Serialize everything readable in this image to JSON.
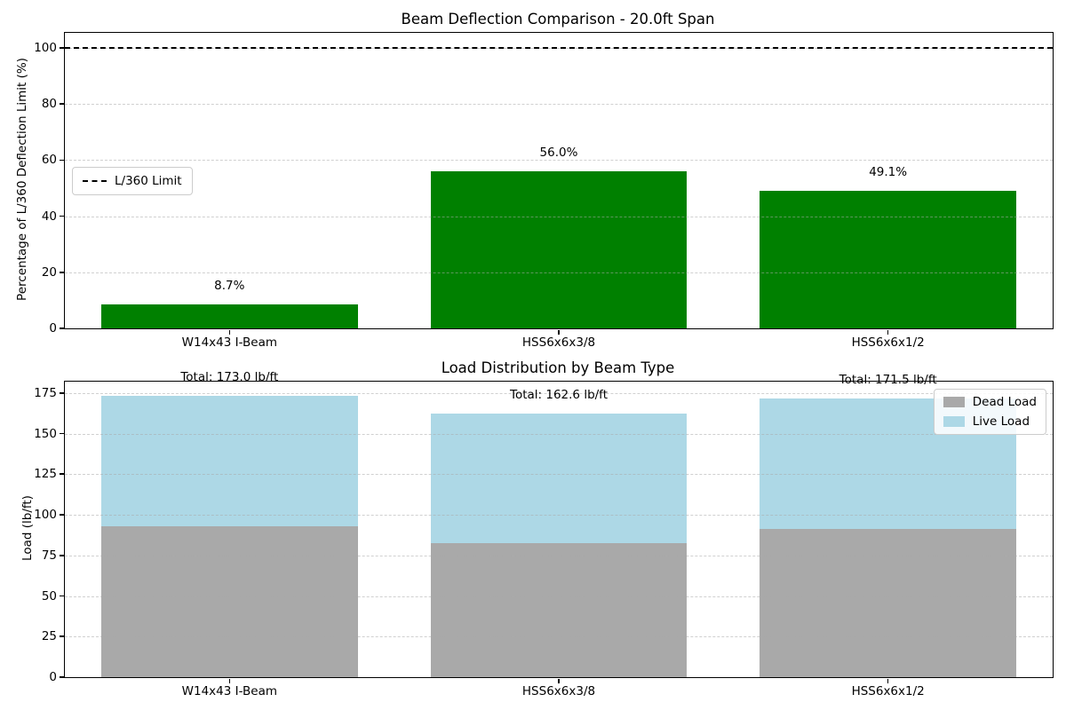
{
  "figure": {
    "background": "#ffffff"
  },
  "colors": {
    "deflection_bar": "#008000",
    "dead_load": "#a9a9a9",
    "live_load": "#add8e6",
    "grid": "#aaaaaa",
    "limit_line": "#000000"
  },
  "chart_data": [
    {
      "type": "bar",
      "title": "Beam Deflection Comparison - 20.0ft Span",
      "ylabel": "Percentage of L/360 Deflection Limit (%)",
      "xlabel": "",
      "categories": [
        "W14x43 I-Beam",
        "HSS6x6x3/8",
        "HSS6x6x1/2"
      ],
      "values": [
        8.7,
        56.0,
        49.1
      ],
      "bar_labels": [
        "8.7%",
        "56.0%",
        "49.1%"
      ],
      "bar_color": "#008000",
      "ylim": [
        0,
        105.4
      ],
      "yticks": [
        0,
        20,
        40,
        60,
        80,
        100
      ],
      "grid": true,
      "reference_line": {
        "value": 100,
        "label": "L/360 Limit",
        "style": "dashed",
        "color": "#000000"
      },
      "legend_position": "center-left"
    },
    {
      "type": "stacked_bar",
      "title": "Load Distribution by Beam Type",
      "ylabel": "Load (lb/ft)",
      "xlabel": "",
      "categories": [
        "W14x43 I-Beam",
        "HSS6x6x3/8",
        "HSS6x6x1/2"
      ],
      "series": [
        {
          "name": "Dead Load",
          "values": [
            93.0,
            82.6,
            91.5
          ],
          "color": "#a9a9a9"
        },
        {
          "name": "Live Load",
          "values": [
            80.0,
            80.0,
            80.0
          ],
          "color": "#add8e6"
        }
      ],
      "totals": [
        173.0,
        162.6,
        171.5
      ],
      "bar_labels": [
        "Total: 173.0 lb/ft",
        "Total: 162.6 lb/ft",
        "Total: 171.5 lb/ft"
      ],
      "ylim": [
        0,
        182
      ],
      "yticks": [
        0,
        25,
        50,
        75,
        100,
        125,
        150,
        175
      ],
      "grid": true,
      "legend_position": "top-right"
    }
  ]
}
